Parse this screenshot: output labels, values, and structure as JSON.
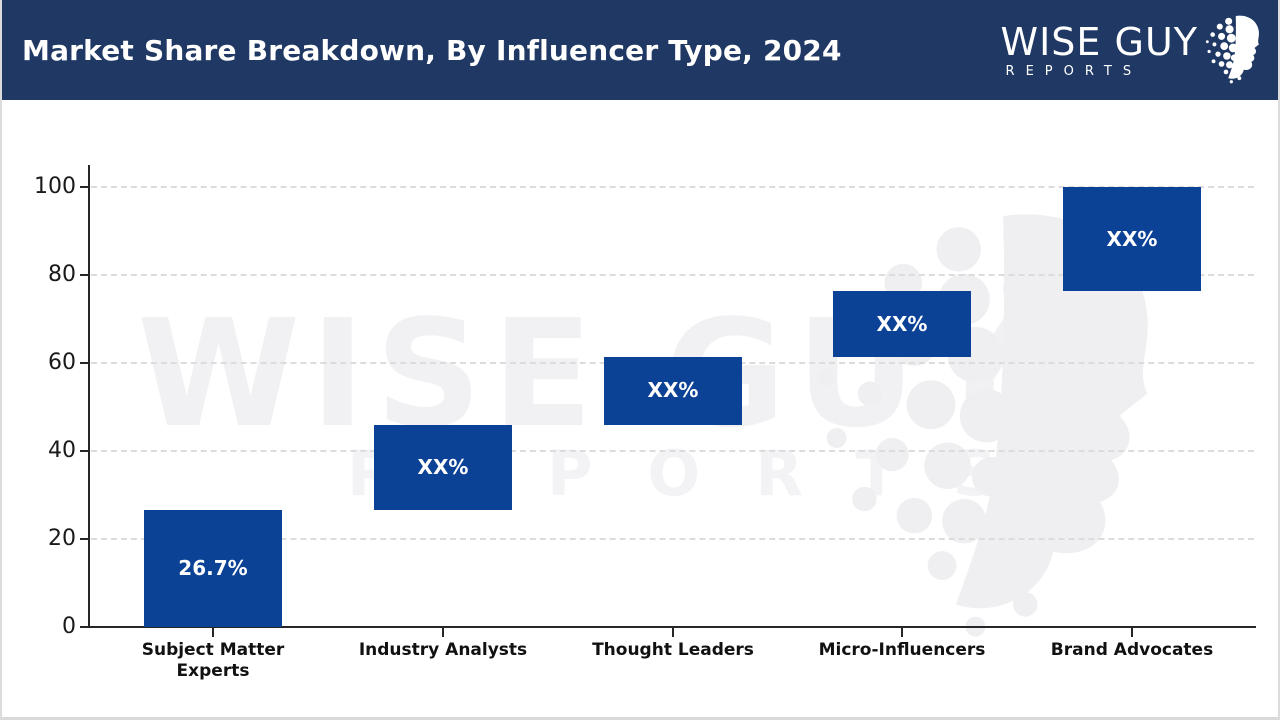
{
  "header": {
    "title": "Market Share Breakdown, By Influencer Type, 2024",
    "logo": {
      "line1": "WISE GUY",
      "line2": "REPORTS"
    }
  },
  "watermark": {
    "line1": "WISE GUY",
    "line2": "REPORTS"
  },
  "colors": {
    "header_bg": "#1f3864",
    "bar": "#0b4296",
    "grid": "#dcdcdc",
    "axis": "#262626",
    "title_text": "#ffffff",
    "watermark_text": "#f1f1f4"
  },
  "chart_data": {
    "type": "bar",
    "subtype": "waterfall",
    "title": "Market Share Breakdown, By Influencer Type, 2024",
    "categories": [
      "Subject Matter Experts",
      "Industry Analysts",
      "Thought Leaders",
      "Micro-Influencers",
      "Brand Advocates"
    ],
    "series": [
      {
        "name": "Market Share",
        "segments": [
          {
            "start": 0,
            "end": 26.7,
            "label": "26.7%"
          },
          {
            "start": 26.7,
            "end": 46.0,
            "label": "XX%"
          },
          {
            "start": 46.0,
            "end": 61.3,
            "label": "XX%"
          },
          {
            "start": 61.3,
            "end": 76.3,
            "label": "XX%"
          },
          {
            "start": 76.3,
            "end": 100,
            "label": "XX%"
          }
        ]
      }
    ],
    "yticks": [
      0,
      20,
      40,
      60,
      80,
      100
    ],
    "ylim": [
      0,
      105
    ],
    "xlabel": "",
    "ylabel": "",
    "grid": "horizontal-dashed",
    "legend": "none"
  }
}
